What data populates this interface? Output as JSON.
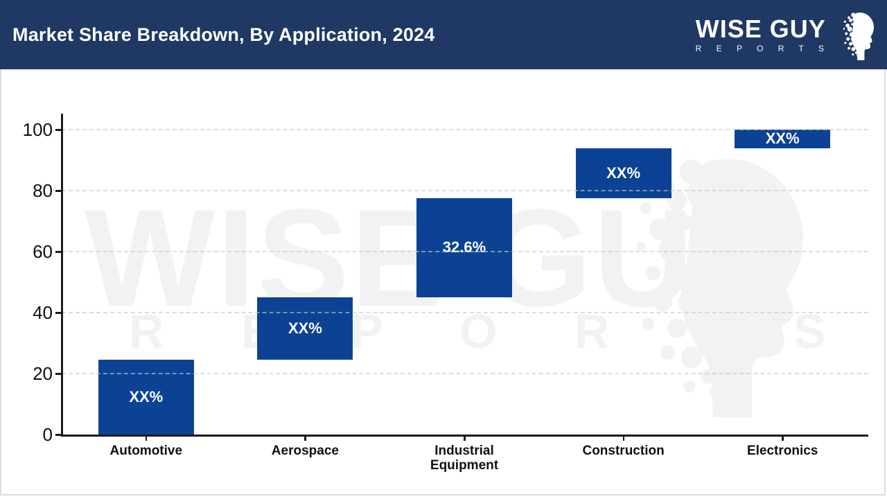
{
  "header": {
    "title": "Market Share Breakdown, By Application, 2024",
    "logo": {
      "brand_line1": "WISE GUY",
      "brand_line2": "R E P O R T S"
    }
  },
  "watermark": {
    "line1": "WISE GUY",
    "line2": "R E P O R T S"
  },
  "colors": {
    "header_bg": "#203864",
    "bar_blue": "#0b4294",
    "axis": "#1a1a1a",
    "grid": "#d9d9d9",
    "bar_label": "#ffffff",
    "watermark": "#f1f2f4"
  },
  "chart_data": {
    "type": "bar",
    "variant": "floating-waterfall",
    "title": "Market Share Breakdown, By Application, 2024",
    "categories": [
      "Automotive",
      "Aerospace",
      "Industrial Equipment",
      "Construction",
      "Electronics"
    ],
    "bars": [
      {
        "category": "Automotive",
        "start": 0,
        "end": 24.5,
        "label": "XX%"
      },
      {
        "category": "Aerospace",
        "start": 24.5,
        "end": 45.0,
        "label": "XX%"
      },
      {
        "category": "Industrial Equipment",
        "start": 45.0,
        "end": 77.6,
        "label": "32.6%"
      },
      {
        "category": "Construction",
        "start": 77.6,
        "end": 93.9,
        "label": "XX%"
      },
      {
        "category": "Electronics",
        "start": 93.9,
        "end": 100.0,
        "label": "XX%"
      }
    ],
    "xlabel": "",
    "ylabel": "",
    "ylim": [
      0,
      100
    ],
    "yticks": [
      0,
      20,
      40,
      60,
      80,
      100
    ],
    "grid": "horizontal-dashed",
    "legend": "none"
  }
}
